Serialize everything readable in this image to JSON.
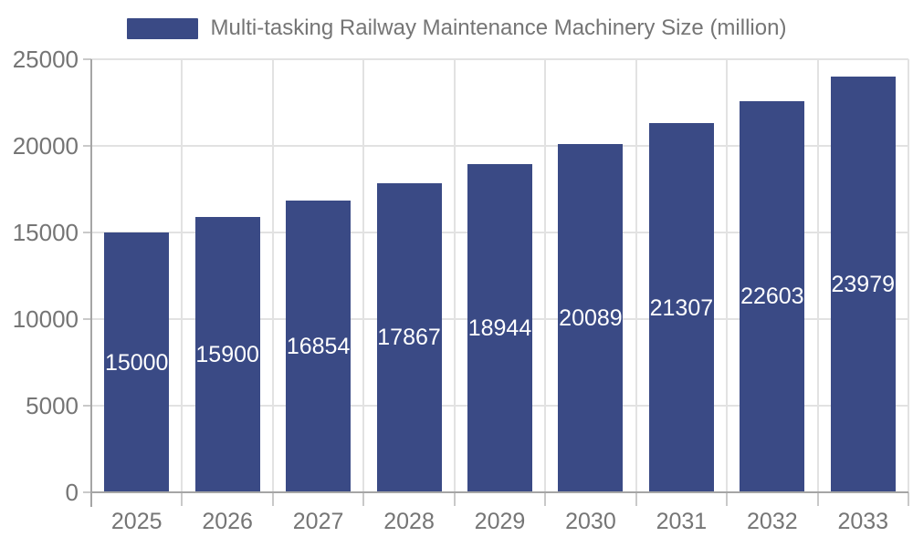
{
  "legend": {
    "label": "Multi-tasking Railway Maintenance Machinery Size (million)"
  },
  "chart_data": {
    "type": "bar",
    "title": "Multi-tasking Railway Maintenance Machinery Size (million)",
    "series_name": "Multi-tasking Railway Maintenance Machinery Size (million)",
    "categories": [
      "2025",
      "2026",
      "2027",
      "2028",
      "2029",
      "2030",
      "2031",
      "2032",
      "2033"
    ],
    "values": [
      15000,
      15900,
      16854,
      17867,
      18944,
      20089,
      21307,
      22603,
      23979
    ],
    "xlabel": "",
    "ylabel": "",
    "ylim": [
      0,
      25000
    ],
    "yticks": [
      0,
      5000,
      10000,
      15000,
      20000,
      25000
    ],
    "grid": true,
    "legend_position": "top-center",
    "value_labels": "inside-center",
    "colors": {
      "bar": "#3A4A85",
      "value_label": "#ffffff",
      "axis_text": "#757575",
      "legend_text": "#757575",
      "grid_line": "#e2e2e2",
      "axis_line": "#a5a5a5",
      "tick_line": "#c9c9c9",
      "background": "#ffffff"
    }
  }
}
